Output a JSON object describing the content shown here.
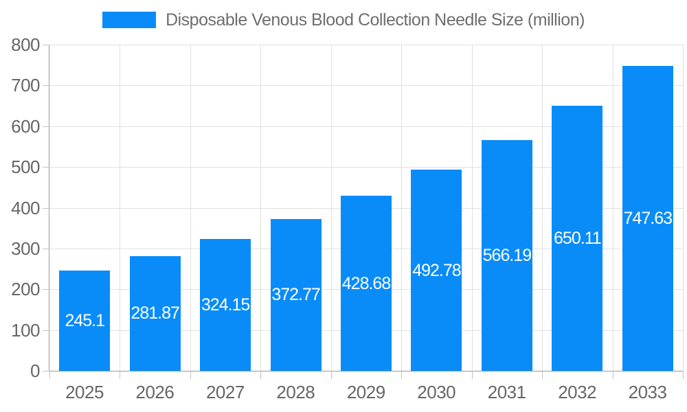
{
  "chart_data": {
    "type": "bar",
    "title": "Disposable Venous Blood Collection Needle Size (million)",
    "categories": [
      "2025",
      "2026",
      "2027",
      "2028",
      "2029",
      "2030",
      "2031",
      "2032",
      "2033"
    ],
    "values": [
      245.1,
      281.87,
      324.15,
      372.77,
      428.68,
      492.78,
      566.19,
      650.11,
      747.63
    ],
    "value_labels": [
      "245.1",
      "281.87",
      "324.15",
      "372.77",
      "428.68",
      "492.78",
      "566.19",
      "650.11",
      "747.63"
    ],
    "xlabel": "",
    "ylabel": "",
    "ylim": [
      0,
      800
    ],
    "ytick_interval": 100,
    "ytick_labels": [
      "0",
      "100",
      "200",
      "300",
      "400",
      "500",
      "600",
      "700",
      "800"
    ],
    "grid": "on",
    "legend_position": "top-center",
    "bar_color": "#0a8cf8",
    "grid_color": "#e0e0e0",
    "axis_color": "#999999",
    "tick_color": "#c2c2c2",
    "label_color": "#666666",
    "title_color": "#6e6e6e",
    "value_label_color": "#ffffff"
  }
}
